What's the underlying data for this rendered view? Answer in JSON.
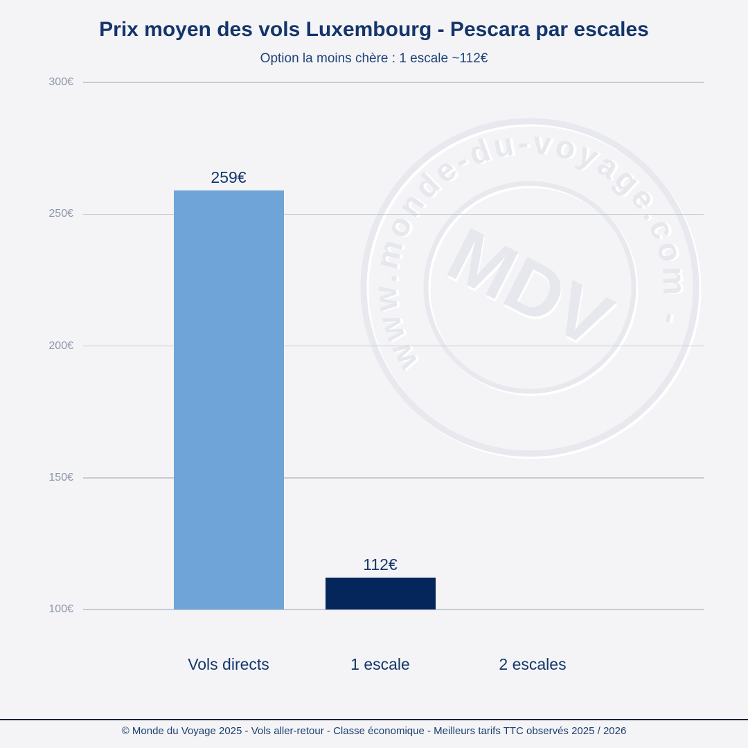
{
  "header": {
    "title": "Prix moyen des vols Luxembourg - Pescara par escales",
    "subtitle": "Option la moins chère : 1 escale ~112€"
  },
  "watermark": {
    "ring_text": "www.monde-du-voyage.com  -  ",
    "center_text": "MDV"
  },
  "footer": {
    "text": "© Monde du Voyage 2025 - Vols aller-retour - Classe économique - Meilleurs tarifs TTC observés 2025 / 2026"
  },
  "chart_data": {
    "type": "bar",
    "title": "Prix moyen des vols Luxembourg - Pescara par escales",
    "subtitle": "Option la moins chère : 1 escale ~112€",
    "categories": [
      "Vols directs",
      "1 escale",
      "2 escales"
    ],
    "values": [
      259,
      112,
      null
    ],
    "value_labels": [
      "259€",
      "112€",
      null
    ],
    "bar_colors": [
      "#6fa4d8",
      "#05265a",
      null
    ],
    "xlabel": "",
    "ylabel": "",
    "ylim": [
      100,
      300
    ],
    "y_tick_step": 50,
    "y_tick_suffix": "€",
    "grid": true,
    "legend": false,
    "grid_color": "#c6cad2",
    "tick_label_color": "#8d96aa",
    "label_color": "#15366b"
  }
}
